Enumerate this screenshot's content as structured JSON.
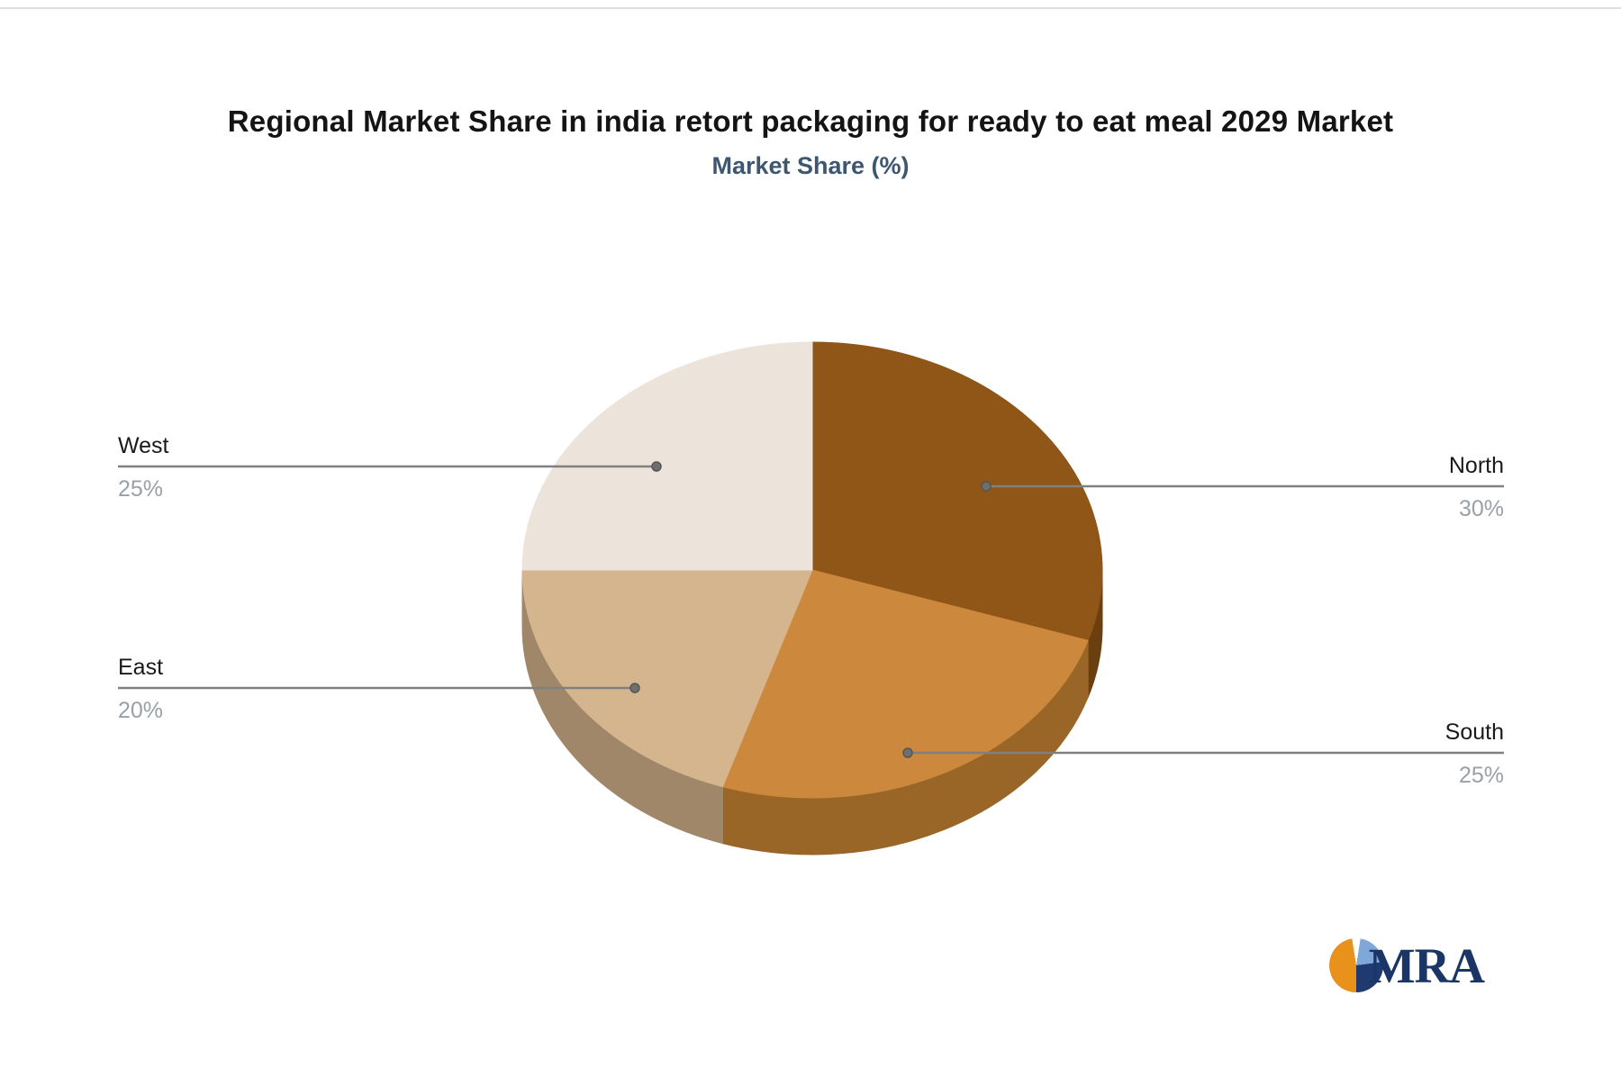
{
  "chart_data": {
    "type": "pie",
    "style": "3d-pie",
    "title": "Regional Market Share in india retort packaging for ready to eat meal 2029 Market",
    "subtitle": "Market Share (%)",
    "unit": "%",
    "total": 100,
    "start_angle_deg": 0,
    "direction": "clockwise",
    "series": [
      {
        "name": "North",
        "value": 30,
        "label": "30%",
        "color": "#8F5618",
        "side_color": "#6B4010"
      },
      {
        "name": "South",
        "value": 25,
        "label": "25%",
        "color": "#CC883C",
        "side_color": "#9A6628"
      },
      {
        "name": "East",
        "value": 20,
        "label": "20%",
        "color": "#D5B58D",
        "side_color": "#A0876A"
      },
      {
        "name": "West",
        "value": 25,
        "label": "25%",
        "color": "#ECE3DA",
        "side_color": null
      }
    ],
    "connector_color": "#808080",
    "label_name_color": "#1a1a1a",
    "label_value_color": "#9aa0a6",
    "legend": "none"
  },
  "footer": {
    "logo_text": "MRA"
  }
}
